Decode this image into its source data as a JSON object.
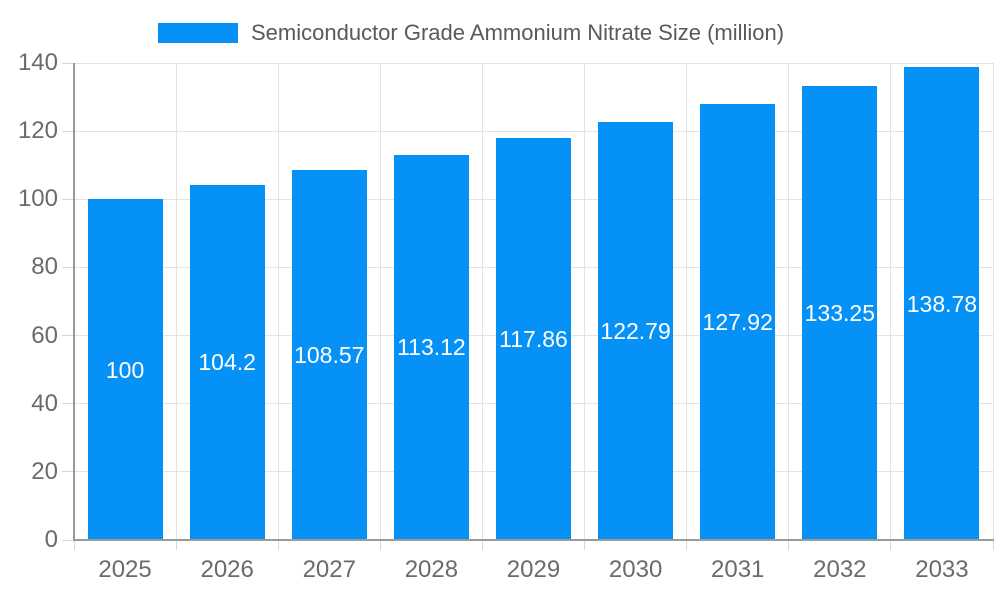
{
  "legend": {
    "label": "Semiconductor Grade Ammonium Nitrate Size (million)",
    "swatch_color": "#0591f5"
  },
  "chart_data": {
    "type": "bar",
    "title": "Semiconductor Grade Ammonium Nitrate Size (million)",
    "categories": [
      "2025",
      "2026",
      "2027",
      "2028",
      "2029",
      "2030",
      "2031",
      "2032",
      "2033"
    ],
    "values": [
      100,
      104.2,
      108.57,
      113.12,
      117.86,
      122.79,
      127.92,
      133.25,
      138.78
    ],
    "value_labels": [
      "100",
      "104.2",
      "108.57",
      "113.12",
      "117.86",
      "122.79",
      "127.92",
      "133.25",
      "138.78"
    ],
    "xlabel": "",
    "ylabel": "",
    "ylim": [
      0,
      140
    ],
    "yticks": [
      0,
      20,
      40,
      60,
      80,
      100,
      120,
      140
    ],
    "grid": true,
    "legend_position": "top",
    "series_name": "Semiconductor Grade Ammonium Nitrate Size (million)"
  },
  "colors": {
    "bar": "#0591f5",
    "grid": "#e3e3e3",
    "tick": "#d6d6d6",
    "axis": "#9a9a9a",
    "tick_text": "#6b6b6b",
    "legend_text": "#58595b",
    "bar_label_text": "#ffffff"
  }
}
